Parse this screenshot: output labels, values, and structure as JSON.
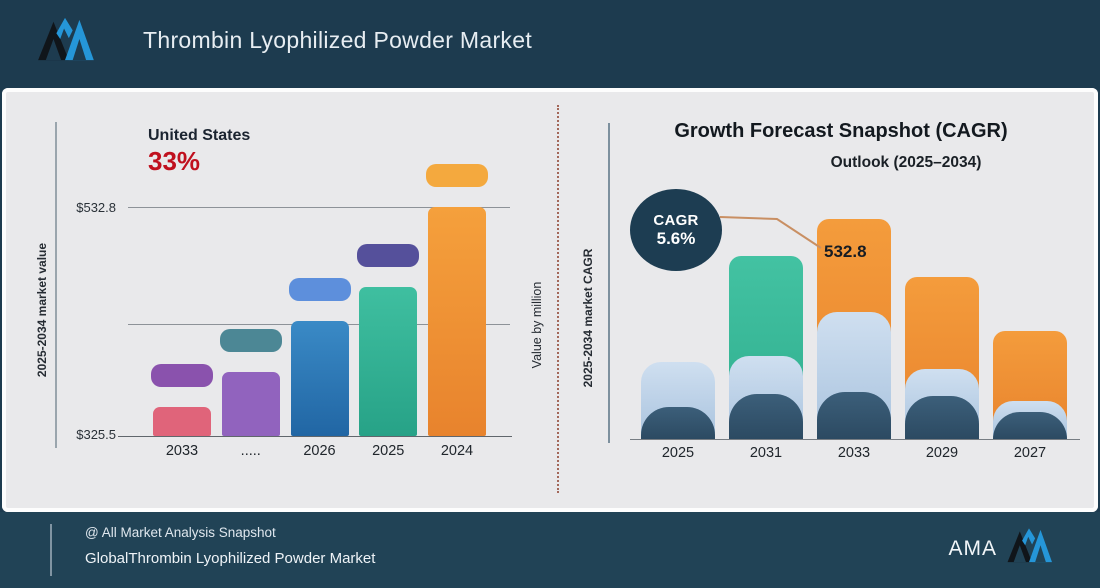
{
  "header": {
    "title": "Thrombin Lyophilized Powder Market"
  },
  "footer": {
    "credit": "@ All Market Analysis Snapshot",
    "source": "GlobalThrombin Lyophilized Powder Market",
    "brand": "AMA"
  },
  "palette": {
    "header_bg": "#1d3b4f",
    "footer_bg": "#214356",
    "panel_bg": "#e9e9eb",
    "accent_red": "#c0101e",
    "badge_bg": "#1d3d52",
    "connector": "#c98f63",
    "us_bars": [
      "#e0647a",
      "#9163be",
      "linear-gradient(180deg,#3a8ac6,#2166a4)",
      "linear-gradient(180deg,#3fbfa0,#27a287)",
      "linear-gradient(180deg,#f5a03c,#e8832d)"
    ],
    "us_caps": [
      "#8a52ad",
      "#4c8795",
      "#5d8fdc",
      "#55509b",
      "#f4a93e"
    ],
    "segments": {
      "base": "linear-gradient(180deg,#3c5f7a,#2c4a62)",
      "mid": "linear-gradient(180deg,#cfdff0,#a9c3de)",
      "top-teal": "linear-gradient(180deg,#43c2a2,#2fae8e)",
      "top-orange": "linear-gradient(180deg,#f49c3c,#e8832d)"
    }
  },
  "chart_data": [
    {
      "id": "us-market-value",
      "type": "bar",
      "title": "United States",
      "highlight_value": "33%",
      "ylabel": "2025-2034 market value",
      "ylabel_right": "Value by million",
      "categories": [
        "2033",
        ".....",
        "2026",
        "2025",
        "2024"
      ],
      "values": [
        352,
        383,
        430,
        460,
        533
      ],
      "ylim": [
        325.5,
        532.8
      ],
      "yticks": {
        "top": "$532.8",
        "bottom": "$325.5"
      },
      "grid": true
    },
    {
      "id": "growth-forecast-cagr",
      "type": "stacked-bar",
      "title": "Growth Forecast Snapshot (CAGR)",
      "subtitle": "Outlook (2025–2034)",
      "ylabel": "2025-2034 market CAGR",
      "badge": {
        "label": "CAGR",
        "value": "5.6%"
      },
      "annotation": {
        "value": "532.8",
        "category": "2033"
      },
      "categories": [
        "2025",
        "2031",
        "2033",
        "2029",
        "2027"
      ],
      "ymax": 532.8,
      "bars": [
        {
          "category": "2025",
          "segments": [
            {
              "name": "base",
              "value": 78
            },
            {
              "name": "mid",
              "value": 109
            }
          ]
        },
        {
          "category": "2031",
          "segments": [
            {
              "name": "base",
              "value": 109
            },
            {
              "name": "mid",
              "value": 92
            },
            {
              "name": "top-teal",
              "value": 242
            }
          ]
        },
        {
          "category": "2033",
          "segments": [
            {
              "name": "base",
              "value": 114
            },
            {
              "name": "mid",
              "value": 194
            },
            {
              "name": "top-orange",
              "value": 225
            }
          ]
        },
        {
          "category": "2029",
          "segments": [
            {
              "name": "base",
              "value": 104
            },
            {
              "name": "mid",
              "value": 65
            },
            {
              "name": "top-orange",
              "value": 223
            }
          ]
        },
        {
          "category": "2027",
          "segments": [
            {
              "name": "base",
              "value": 65
            },
            {
              "name": "mid",
              "value": 27
            },
            {
              "name": "top-orange",
              "value": 170
            }
          ]
        }
      ]
    }
  ]
}
